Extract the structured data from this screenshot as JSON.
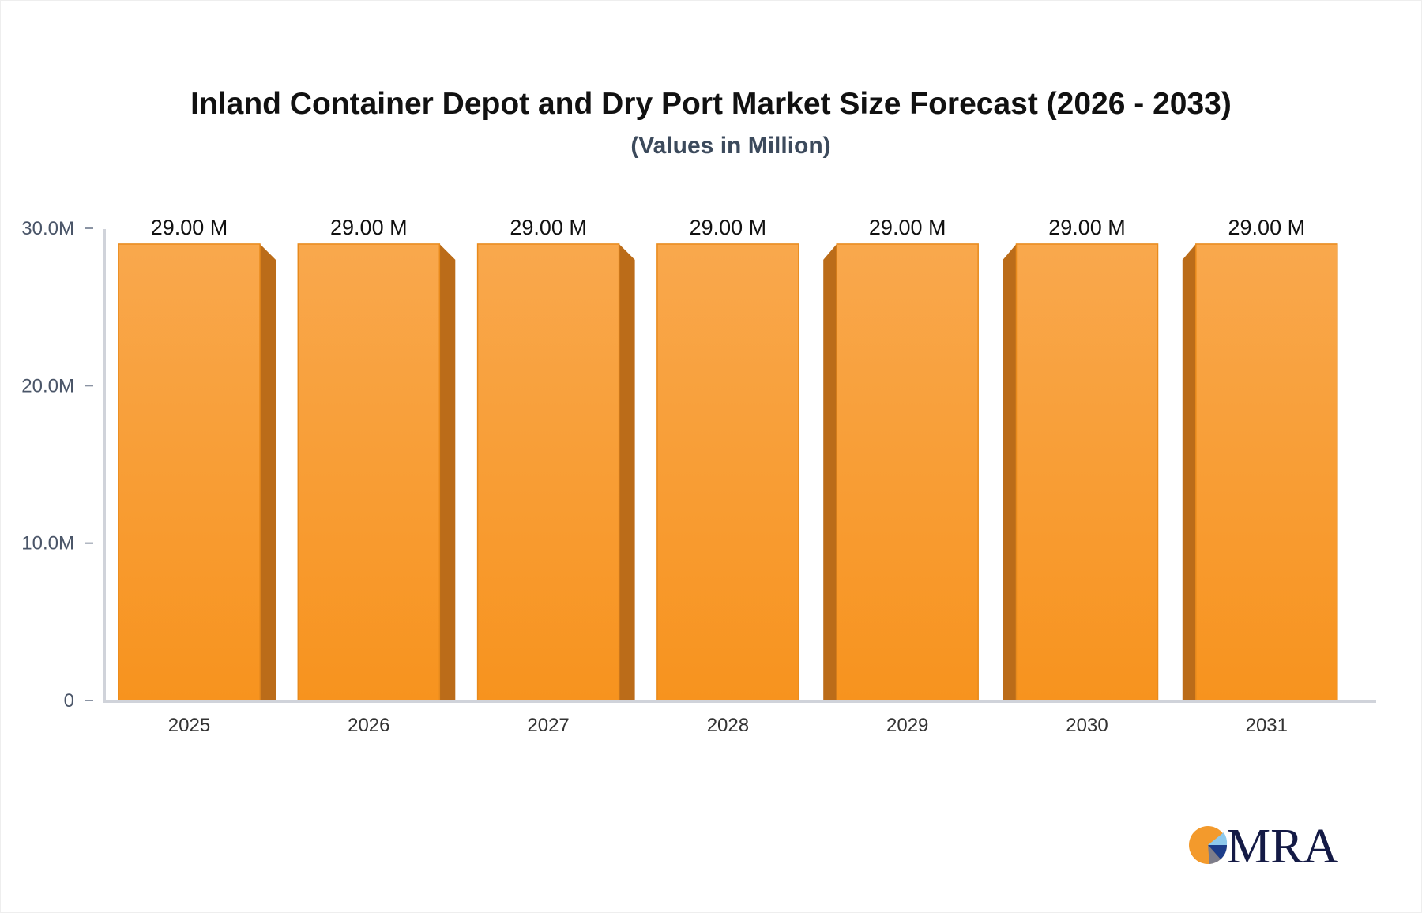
{
  "chart_data": {
    "type": "bar",
    "title": "Inland Container Depot and Dry Port Market Size Forecast (2026 - 2033)",
    "subtitle": "(Values in Million)",
    "categories": [
      "2025",
      "2026",
      "2027",
      "2028",
      "2029",
      "2030",
      "2031"
    ],
    "values": [
      29.0,
      29.0,
      29.0,
      29.0,
      29.0,
      29.0,
      29.0
    ],
    "data_labels": [
      "29.00 M",
      "29.00 M",
      "29.00 M",
      "29.00 M",
      "29.00 M",
      "29.00 M",
      "29.00 M"
    ],
    "ylim": [
      0,
      30
    ],
    "yticks": [
      0,
      10,
      20,
      30
    ],
    "ytick_labels": [
      "0",
      "10.0M",
      "20.0M",
      "30.0M"
    ],
    "xlabel": "",
    "ylabel": "",
    "grid": false,
    "colors": {
      "bar_top": "#f9a84d",
      "bar_bottom": "#f7931e",
      "bar_side": "#bb6c19",
      "axis": "#d0d3da"
    }
  },
  "logo": {
    "text": "MRA"
  }
}
